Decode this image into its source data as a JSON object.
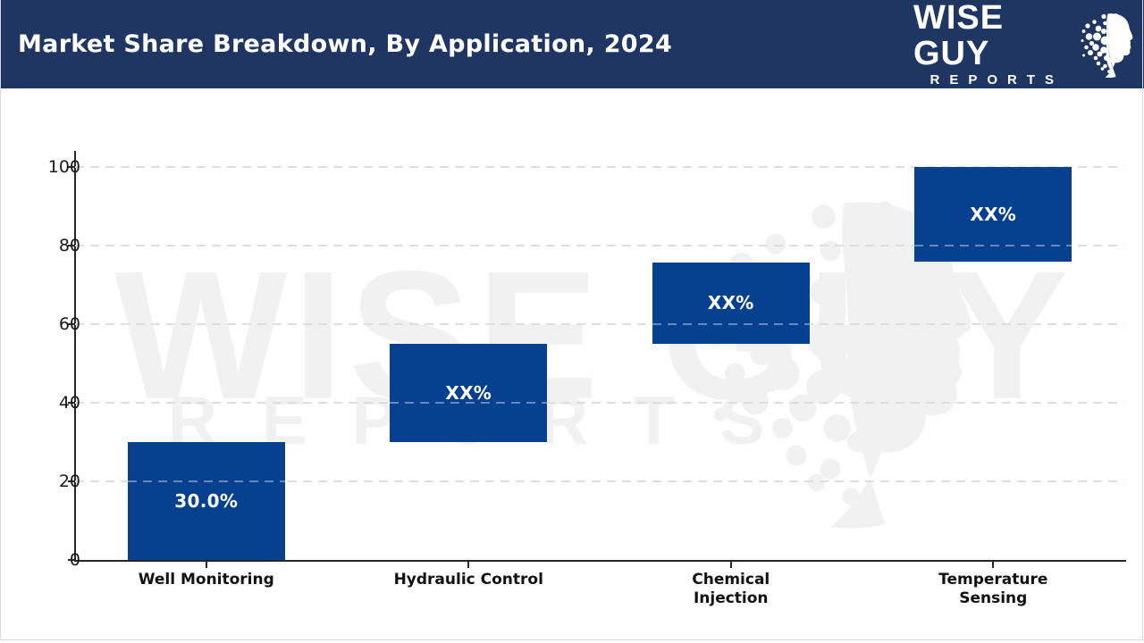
{
  "header": {
    "title": "Market Share Breakdown, By Application, 2024",
    "brand_line1": "WISE GUY",
    "brand_line2": "REPORTS"
  },
  "watermark": {
    "line1": "WISE GUY",
    "line2": "REPORTS"
  },
  "colors": {
    "header_bg": "#203662",
    "bar_blue": "#07408f",
    "axis": "#262626",
    "gridline": "#dedede",
    "watermark": "#f1f1f1",
    "page_border": "#d9d9d9"
  },
  "chart_data": {
    "type": "bar",
    "subtype": "waterfall",
    "title": "Market Share Breakdown, By Application, 2024",
    "xlabel": "",
    "ylabel": "",
    "categories": [
      "Well Monitoring",
      "Hydraulic Control",
      "Chemical Injection",
      "Temperature Sensing"
    ],
    "bars": [
      {
        "category": "Well Monitoring",
        "start": 0,
        "end": 30,
        "label": "30.0%"
      },
      {
        "category": "Hydraulic Control",
        "start": 30,
        "end": 55,
        "label": "XX%"
      },
      {
        "category": "Chemical Injection",
        "start": 55,
        "end": 75.7,
        "label": "XX%"
      },
      {
        "category": "Temperature Sensing",
        "start": 75.9,
        "end": 100,
        "label": "XX%"
      }
    ],
    "y_ticks": [
      0,
      20,
      40,
      60,
      80,
      100
    ],
    "ylim": [
      0,
      105
    ],
    "grid": "dashed-horizontal",
    "legend": "none"
  }
}
